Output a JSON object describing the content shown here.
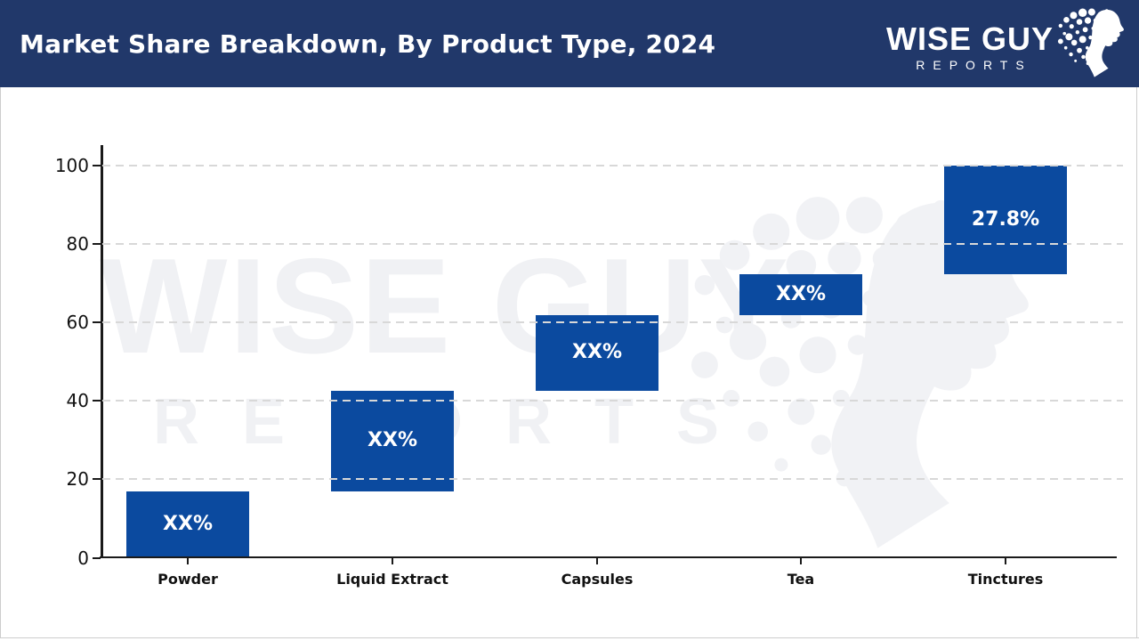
{
  "header": {
    "title": "Market Share Breakdown, By Product Type, 2024",
    "bg_color": "#21386a",
    "logo": {
      "line1": "WISE GUY",
      "line2": "REPORTS"
    }
  },
  "watermark": {
    "line1": "WISE GUY",
    "line2": "REPORTS"
  },
  "chart_data": {
    "type": "bar",
    "variant": "waterfall",
    "title": "Market Share Breakdown, By Product Type, 2024",
    "categories": [
      "Powder",
      "Liquid Extract",
      "Capsules",
      "Tea",
      "Tinctures"
    ],
    "segments": [
      {
        "category": "Powder",
        "start": 0,
        "end": 17.0,
        "label": "XX%"
      },
      {
        "category": "Liquid Extract",
        "start": 17.0,
        "end": 42.6,
        "label": "XX%"
      },
      {
        "category": "Capsules",
        "start": 42.6,
        "end": 61.9,
        "label": "XX%"
      },
      {
        "category": "Tea",
        "start": 61.9,
        "end": 72.2,
        "label": "XX%"
      },
      {
        "category": "Tinctures",
        "start": 72.2,
        "end": 100.0,
        "label": "27.8%"
      }
    ],
    "estimated_segment_sizes_pct": [
      17.0,
      25.6,
      19.3,
      10.3,
      27.8
    ],
    "ylim": [
      0,
      100
    ],
    "yticks": [
      0,
      20,
      40,
      60,
      80,
      100
    ],
    "xlabel": "",
    "ylabel": "",
    "grid": "horizontal-dashed",
    "legend": "none",
    "bar_color": "#0b4a9f",
    "bar_label_color": "#ffffff",
    "axis_color": "#1a1a1a",
    "gridline_color": "#d8d8d8"
  }
}
